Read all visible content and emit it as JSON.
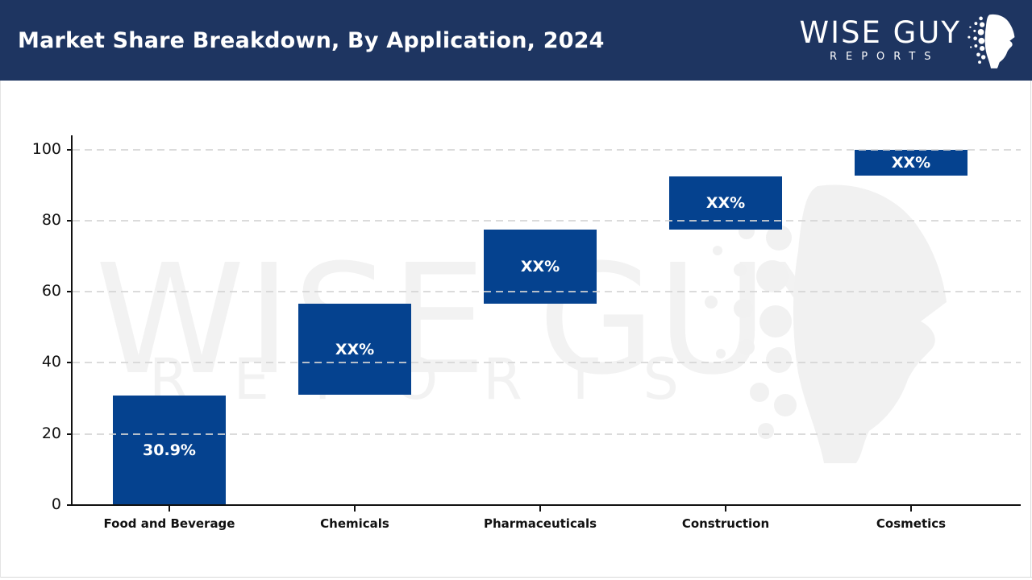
{
  "header": {
    "title": "Market Share Breakdown, By Application, 2024",
    "bg_color": "#1e3561",
    "logo": {
      "line1": "WISE GUY",
      "line2": "REPORTS"
    }
  },
  "watermark": {
    "line1": "WISE GUY",
    "line2": "REPORTS"
  },
  "chart_data": {
    "type": "bar",
    "subtype": "waterfall",
    "title": "Market Share Breakdown, By Application, 2024",
    "xlabel": "",
    "ylabel": "",
    "ylim": [
      0,
      104
    ],
    "yticks": [
      0,
      20,
      40,
      60,
      80,
      100
    ],
    "grid": true,
    "gridline_style": "dashed",
    "legend": "none",
    "bar_color": "#05428f",
    "bar_label_color": "#ffffff",
    "categories": [
      "Food and Beverage",
      "Chemicals",
      "Pharmaceuticals",
      "Construction",
      "Cosmetics"
    ],
    "segments": [
      {
        "category": "Food and Beverage",
        "start": 0,
        "end": 30.9,
        "value_label": "30.9%",
        "approx_share": 30.9
      },
      {
        "category": "Chemicals",
        "start": 31.0,
        "end": 56.6,
        "value_label": "XX%",
        "approx_share": 25.6
      },
      {
        "category": "Pharmaceuticals",
        "start": 56.7,
        "end": 77.4,
        "value_label": "XX%",
        "approx_share": 20.7
      },
      {
        "category": "Construction",
        "start": 77.6,
        "end": 92.4,
        "value_label": "XX%",
        "approx_share": 14.8
      },
      {
        "category": "Cosmetics",
        "start": 92.6,
        "end": 100,
        "value_label": "XX%",
        "approx_share": 7.4
      }
    ]
  }
}
